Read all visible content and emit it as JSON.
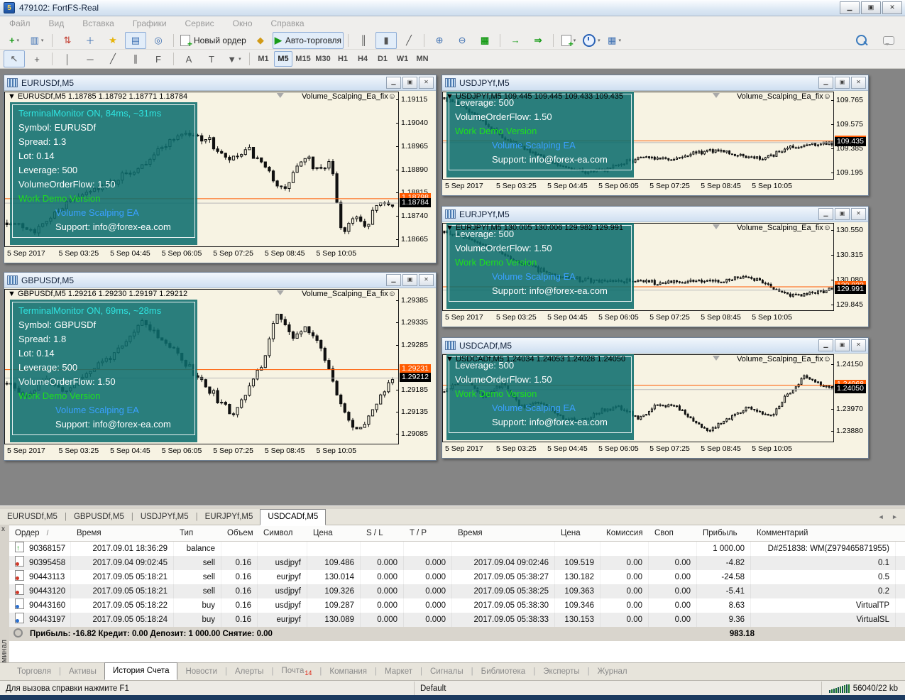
{
  "window": {
    "title": "479102: FortFS-Real"
  },
  "menu": [
    "Файл",
    "Вид",
    "Вставка",
    "Графики",
    "Сервис",
    "Окно",
    "Справка"
  ],
  "toolbar_main": {
    "buttons": [
      "new-chart",
      "profiles",
      "sep",
      "market-watch",
      "data-window",
      "navigator",
      "terminal",
      "strategy-tester",
      "sep",
      "new-order",
      "metaeditor",
      "auto-trading",
      "sep",
      "bar-chart",
      "candlestick-chart",
      "line-chart",
      "sep",
      "zoom-in",
      "zoom-out",
      "tile-windows",
      "sep",
      "auto-scroll",
      "chart-shift",
      "sep",
      "indicators",
      "periods",
      "templates"
    ],
    "right_buttons": [
      "search",
      "chat"
    ],
    "new_order_label": "Новый ордер",
    "auto_trading_label": "Авто-торговля",
    "pressed": [
      "terminal",
      "candlestick-chart",
      "auto-trading"
    ],
    "dropdowns": [
      "new-chart",
      "profiles",
      "indicators",
      "periods",
      "templates"
    ]
  },
  "toolbar_draw": {
    "buttons": [
      "cursor",
      "crosshair",
      "sep",
      "vertical-line",
      "horizontal-line",
      "trendline",
      "equidistant-channel",
      "fibonacci",
      "sep",
      "text",
      "text-label",
      "arrows",
      "sep"
    ],
    "pressed": [
      "cursor"
    ],
    "timeframes": [
      "M1",
      "M5",
      "M15",
      "M30",
      "H1",
      "H4",
      "D1",
      "W1",
      "MN"
    ],
    "active_timeframe": "M5"
  },
  "charts": [
    {
      "id": "eurusd",
      "title": "EURUSDf,M5",
      "quote": "EURUSDf,M5  1.18785 1.18792 1.18771 1.18784",
      "ea_label": "Volume_Scalping_Ea_fix☺",
      "price_min": 1.18645,
      "price_max": 1.1914,
      "ticks": [
        "1.19115",
        "1.19040",
        "1.18965",
        "1.18890",
        "1.18815",
        "1.18740",
        "1.18665"
      ],
      "ask": "1.18798",
      "bid": "1.18784",
      "time_labels": [
        "5 Sep 2017",
        "5 Sep 03:25",
        "5 Sep 04:45",
        "5 Sep 06:05",
        "5 Sep 07:25",
        "5 Sep 08:45",
        "5 Sep 10:05"
      ],
      "overlay": [
        {
          "t": "TerminalMonitor ON, 84ms, ~31ms",
          "k": "c"
        },
        {
          "t": "Symbol: EURUSDf",
          "k": "w"
        },
        {
          "t": "Spread: 1.3",
          "k": "w"
        },
        {
          "t": "Lot: 0.14",
          "k": "w"
        },
        {
          "t": "Leverage: 500",
          "k": "w"
        },
        {
          "t": "VolumeOrderFlow: 1.50",
          "k": "w"
        },
        {
          "t": "Work Demo Version",
          "k": "g"
        },
        {
          "t": "Volume Scalping EA",
          "k": "b",
          "i": 1
        },
        {
          "t": "Support: info@forex-ea.com",
          "k": "w",
          "i": 1
        }
      ],
      "trend": [
        [
          0,
          1.1872
        ],
        [
          0.08,
          1.187
        ],
        [
          0.15,
          1.1878
        ],
        [
          0.25,
          1.1884
        ],
        [
          0.33,
          1.1889
        ],
        [
          0.4,
          1.1896
        ],
        [
          0.45,
          1.1901
        ],
        [
          0.52,
          1.1899
        ],
        [
          0.57,
          1.1892
        ],
        [
          0.63,
          1.1895
        ],
        [
          0.68,
          1.1888
        ],
        [
          0.72,
          1.1882
        ],
        [
          0.75,
          1.189
        ],
        [
          0.78,
          1.1893
        ],
        [
          0.8,
          1.1889
        ],
        [
          0.84,
          1.1891
        ],
        [
          0.87,
          1.1868
        ],
        [
          0.9,
          1.1875
        ],
        [
          0.93,
          1.187
        ],
        [
          0.96,
          1.1878
        ],
        [
          1,
          1.18784
        ]
      ]
    },
    {
      "id": "gbpusd",
      "title": "GBPUSDf,M5",
      "quote": "GBPUSDf,M5  1.29216 1.29230 1.29197 1.29212",
      "ea_label": "Volume_Scalping_Ea_fix☺",
      "price_min": 1.29065,
      "price_max": 1.2941,
      "ticks": [
        "1.29385",
        "1.29335",
        "1.29285",
        "1.29185",
        "1.29135",
        "1.29085"
      ],
      "ask": "1.29231",
      "bid": "1.29212",
      "time_labels": [
        "5 Sep 2017",
        "5 Sep 03:25",
        "5 Sep 04:45",
        "5 Sep 06:05",
        "5 Sep 07:25",
        "5 Sep 08:45",
        "5 Sep 10:05"
      ],
      "overlay": [
        {
          "t": "TerminalMonitor ON, 69ms, ~28ms",
          "k": "c"
        },
        {
          "t": "Symbol: GBPUSDf",
          "k": "w"
        },
        {
          "t": "Spread: 1.8",
          "k": "w"
        },
        {
          "t": "Lot: 0.14",
          "k": "w"
        },
        {
          "t": "Leverage: 500",
          "k": "w"
        },
        {
          "t": "VolumeOrderFlow: 1.50",
          "k": "w"
        },
        {
          "t": "Work Demo Version",
          "k": "g"
        },
        {
          "t": "Volume Scalping EA",
          "k": "b",
          "i": 1
        },
        {
          "t": "Support: info@forex-ea.com",
          "k": "w",
          "i": 1
        }
      ],
      "trend": [
        [
          0,
          1.292
        ],
        [
          0.05,
          1.2917
        ],
        [
          0.1,
          1.2921
        ],
        [
          0.15,
          1.2918
        ],
        [
          0.2,
          1.2922
        ],
        [
          0.25,
          1.2925
        ],
        [
          0.3,
          1.2928
        ],
        [
          0.35,
          1.2934
        ],
        [
          0.4,
          1.293
        ],
        [
          0.45,
          1.2926
        ],
        [
          0.5,
          1.2921
        ],
        [
          0.55,
          1.2916
        ],
        [
          0.58,
          1.2913
        ],
        [
          0.62,
          1.2918
        ],
        [
          0.66,
          1.2924
        ],
        [
          0.7,
          1.2936
        ],
        [
          0.74,
          1.293
        ],
        [
          0.78,
          1.2933
        ],
        [
          0.82,
          1.2927
        ],
        [
          0.86,
          1.2917
        ],
        [
          0.9,
          1.2909
        ],
        [
          0.94,
          1.2913
        ],
        [
          1,
          1.29212
        ]
      ]
    },
    {
      "id": "usdjpy",
      "title": "USDJPYf,M5",
      "quote": "USDJPYf,M5  109.445 109.445 109.433 109.435",
      "ea_label": "Volume_Scalping_Ea_fix☺",
      "price_min": 109.15,
      "price_max": 109.83,
      "ticks": [
        "109.765",
        "109.575",
        "109.385",
        "109.195"
      ],
      "ask": "109.448",
      "bid": "109.435",
      "time_labels": [
        "5 Sep 2017",
        "5 Sep 03:25",
        "5 Sep 04:45",
        "5 Sep 06:05",
        "5 Sep 07:25",
        "5 Sep 08:45",
        "5 Sep 10:05"
      ],
      "overlay": [
        {
          "t": "Leverage: 500",
          "k": "w"
        },
        {
          "t": "VolumeOrderFlow: 1.50",
          "k": "w"
        },
        {
          "t": "Work Demo Version",
          "k": "g"
        },
        {
          "t": "Volume Scalping EA",
          "k": "b",
          "i": 1
        },
        {
          "t": "Support: info@forex-ea.com",
          "k": "w",
          "i": 1
        }
      ],
      "trend": [
        [
          0,
          109.78
        ],
        [
          0.05,
          109.72
        ],
        [
          0.1,
          109.6
        ],
        [
          0.15,
          109.48
        ],
        [
          0.22,
          109.37
        ],
        [
          0.3,
          109.25
        ],
        [
          0.38,
          109.2
        ],
        [
          0.45,
          109.26
        ],
        [
          0.52,
          109.33
        ],
        [
          0.58,
          109.3
        ],
        [
          0.64,
          109.35
        ],
        [
          0.7,
          109.38
        ],
        [
          0.76,
          109.33
        ],
        [
          0.82,
          109.31
        ],
        [
          0.88,
          109.38
        ],
        [
          0.94,
          109.42
        ],
        [
          1,
          109.435
        ]
      ]
    },
    {
      "id": "eurjpy",
      "title": "EURJPYf,M5",
      "quote": "EURJPYf,M5  130.005 130.006 129.982 129.991",
      "ea_label": "Volume_Scalping_Ea_fix☺",
      "price_min": 129.8,
      "price_max": 130.62,
      "ticks": [
        "130.550",
        "130.315",
        "130.080",
        "129.845"
      ],
      "ask": "130.022",
      "bid": "129.991",
      "time_labels": [
        "5 Sep 2017",
        "5 Sep 03:25",
        "5 Sep 04:45",
        "5 Sep 06:05",
        "5 Sep 07:25",
        "5 Sep 08:45",
        "5 Sep 10:05"
      ],
      "overlay": [
        {
          "t": "Leverage: 500",
          "k": "w"
        },
        {
          "t": "VolumeOrderFlow: 1.50",
          "k": "w"
        },
        {
          "t": "Work Demo Version",
          "k": "g"
        },
        {
          "t": "Volume Scalping EA",
          "k": "b",
          "i": 1
        },
        {
          "t": "Support: info@forex-ea.com",
          "k": "w",
          "i": 1
        }
      ],
      "trend": [
        [
          0,
          130.55
        ],
        [
          0.06,
          130.48
        ],
        [
          0.12,
          130.38
        ],
        [
          0.18,
          130.28
        ],
        [
          0.25,
          130.18
        ],
        [
          0.32,
          130.1
        ],
        [
          0.4,
          130.07
        ],
        [
          0.48,
          130.08
        ],
        [
          0.56,
          130.06
        ],
        [
          0.64,
          130.08
        ],
        [
          0.72,
          130.07
        ],
        [
          0.78,
          130.12
        ],
        [
          0.82,
          130.06
        ],
        [
          0.86,
          130.0
        ],
        [
          0.9,
          129.93
        ],
        [
          0.95,
          129.97
        ],
        [
          1,
          129.991
        ]
      ]
    },
    {
      "id": "usdcad",
      "title": "USDCADf,M5",
      "quote": "USDCADf,M5  1.24034 1.24053 1.24028 1.24050",
      "ea_label": "Volume_Scalping_Ea_fix☺",
      "price_min": 1.2384,
      "price_max": 1.2419,
      "ticks": [
        "1.24150",
        "1.24060",
        "1.23970",
        "1.23880"
      ],
      "ask": "1.24068",
      "bid": "1.24050",
      "time_labels": [
        "5 Sep 2017",
        "5 Sep 03:25",
        "5 Sep 04:45",
        "5 Sep 06:05",
        "5 Sep 07:25",
        "5 Sep 08:45",
        "5 Sep 10:05"
      ],
      "overlay": [
        {
          "t": "Leverage: 500",
          "k": "w"
        },
        {
          "t": "VolumeOrderFlow: 1.50",
          "k": "w"
        },
        {
          "t": "Work Demo Version",
          "k": "g"
        },
        {
          "t": "Volume Scalping EA",
          "k": "b",
          "i": 1
        },
        {
          "t": "Support: info@forex-ea.com",
          "k": "w",
          "i": 1
        }
      ],
      "trend": [
        [
          0,
          1.2404
        ],
        [
          0.05,
          1.241
        ],
        [
          0.1,
          1.2402
        ],
        [
          0.15,
          1.2407
        ],
        [
          0.2,
          1.2398
        ],
        [
          0.25,
          1.24
        ],
        [
          0.3,
          1.2394
        ],
        [
          0.35,
          1.2392
        ],
        [
          0.4,
          1.2396
        ],
        [
          0.45,
          1.2398
        ],
        [
          0.5,
          1.2393
        ],
        [
          0.55,
          1.2399
        ],
        [
          0.6,
          1.2398
        ],
        [
          0.65,
          1.2392
        ],
        [
          0.68,
          1.2388
        ],
        [
          0.72,
          1.2392
        ],
        [
          0.78,
          1.2398
        ],
        [
          0.84,
          1.2394
        ],
        [
          0.88,
          1.2402
        ],
        [
          0.93,
          1.241
        ],
        [
          1,
          1.2405
        ]
      ]
    }
  ],
  "terminal": {
    "chart_tabs": [
      "EURUSDf,M5",
      "GBPUSDf,M5",
      "USDJPYf,M5",
      "EURJPYf,M5",
      "USDCADf,M5"
    ],
    "active_chart_tab": "USDCADf,M5",
    "columns": [
      "Ордер",
      "Время",
      "Тип",
      "Объем",
      "Символ",
      "Цена",
      "S / L",
      "T / P",
      "Время",
      "Цена",
      "Комиссия",
      "Своп",
      "Прибыль",
      "Комментарий"
    ],
    "rows": [
      {
        "icon": "balance",
        "order": "90368157",
        "time": "2017.09.01 18:36:29",
        "type": "balance",
        "volume": "",
        "symbol": "",
        "price": "",
        "sl": "",
        "tp": "",
        "time2": "",
        "price2": "",
        "commission": "",
        "swap": "",
        "profit": "1 000.00",
        "comment": "D#251838: WM(Z979465871955)"
      },
      {
        "icon": "sell",
        "order": "90395458",
        "time": "2017.09.04 09:02:45",
        "type": "sell",
        "volume": "0.16",
        "symbol": "usdjpyf",
        "price": "109.486",
        "sl": "0.000",
        "tp": "0.000",
        "time2": "2017.09.04 09:02:46",
        "price2": "109.519",
        "commission": "0.00",
        "swap": "0.00",
        "profit": "-4.82",
        "comment": "0.1"
      },
      {
        "icon": "sell",
        "order": "90443113",
        "time": "2017.09.05 05:18:21",
        "type": "sell",
        "volume": "0.16",
        "symbol": "eurjpyf",
        "price": "130.014",
        "sl": "0.000",
        "tp": "0.000",
        "time2": "2017.09.05 05:38:27",
        "price2": "130.182",
        "commission": "0.00",
        "swap": "0.00",
        "profit": "-24.58",
        "comment": "0.5"
      },
      {
        "icon": "sell",
        "order": "90443120",
        "time": "2017.09.05 05:18:21",
        "type": "sell",
        "volume": "0.16",
        "symbol": "usdjpyf",
        "price": "109.326",
        "sl": "0.000",
        "tp": "0.000",
        "time2": "2017.09.05 05:38:25",
        "price2": "109.363",
        "commission": "0.00",
        "swap": "0.00",
        "profit": "-5.41",
        "comment": "0.2"
      },
      {
        "icon": "buy",
        "order": "90443160",
        "time": "2017.09.05 05:18:22",
        "type": "buy",
        "volume": "0.16",
        "symbol": "usdjpyf",
        "price": "109.287",
        "sl": "0.000",
        "tp": "0.000",
        "time2": "2017.09.05 05:38:30",
        "price2": "109.346",
        "commission": "0.00",
        "swap": "0.00",
        "profit": "8.63",
        "comment": "VirtualTP"
      },
      {
        "icon": "buy",
        "order": "90443197",
        "time": "2017.09.05 05:18:24",
        "type": "buy",
        "volume": "0.16",
        "symbol": "eurjpyf",
        "price": "130.089",
        "sl": "0.000",
        "tp": "0.000",
        "time2": "2017.09.05 05:38:33",
        "price2": "130.153",
        "commission": "0.00",
        "swap": "0.00",
        "profit": "9.36",
        "comment": "VirtualSL"
      }
    ],
    "summary": {
      "items": [
        "Прибыль: -16.82",
        "Кредит: 0.00",
        "Депозит: 1 000.00",
        "Снятие: 0.00"
      ],
      "balance": "983.18"
    },
    "tabs": [
      {
        "label": "Торговля"
      },
      {
        "label": "Активы"
      },
      {
        "label": "История Счета"
      },
      {
        "label": "Новости"
      },
      {
        "label": "Алерты"
      },
      {
        "label": "Почта",
        "badge": "14"
      },
      {
        "label": "Компания"
      },
      {
        "label": "Маркет"
      },
      {
        "label": "Сигналы"
      },
      {
        "label": "Библиотека"
      },
      {
        "label": "Эксперты"
      },
      {
        "label": "Журнал"
      }
    ],
    "active_tab": "История Счета",
    "dock_label": "Терминал"
  },
  "status_bar": {
    "help": "Для вызова справки нажмите F1",
    "profile": "Default",
    "traffic": "56040/22 kb"
  },
  "colors": {
    "overlay_teal": "#0b6c6c",
    "overlay_cyan": "#2fe3df",
    "overlay_green": "#1ee01e",
    "overlay_blue": "#3aa0ff",
    "ask_orange": "#ff5a00",
    "bid_black": "#000000",
    "chart_bg": "#f7f3e3"
  }
}
